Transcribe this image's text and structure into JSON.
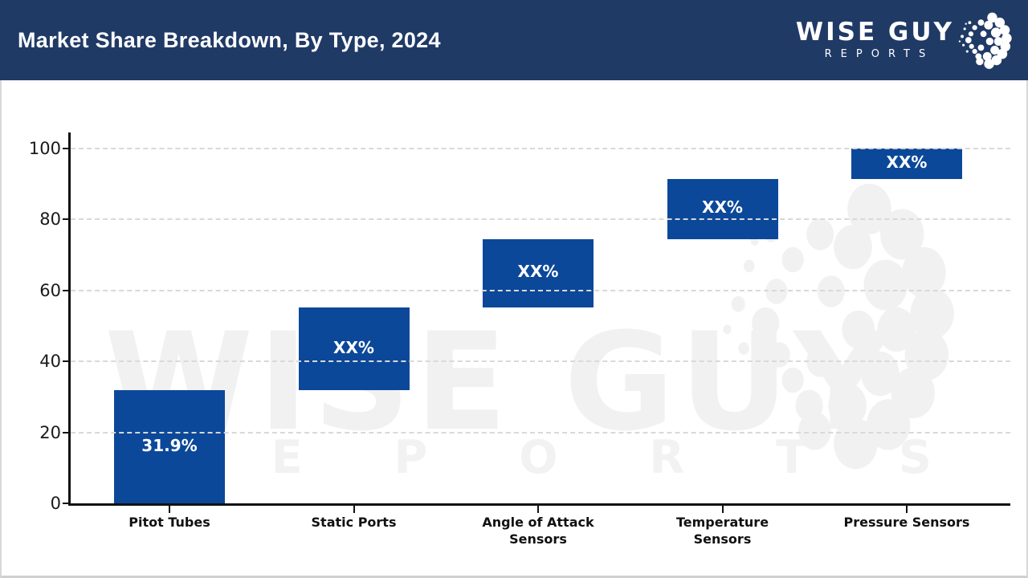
{
  "header": {
    "title": "Market Share Breakdown, By Type, 2024",
    "bg_color": "#203a66",
    "logo": {
      "wordmark": "WISE GUY",
      "subtitle": "REPORTS"
    }
  },
  "watermark": {
    "wordmark": "WISE GUY",
    "subtitle": "R E P O R T S"
  },
  "chart_data": {
    "type": "bar",
    "subtype": "floating-waterfall",
    "title": "Market Share Breakdown, By Type, 2024",
    "categories": [
      "Pitot Tubes",
      "Static Ports",
      "Angle of Attack Sensors",
      "Temperature Sensors",
      "Pressure Sensors"
    ],
    "bars": [
      {
        "category": "Pitot Tubes",
        "start": 0,
        "end": 31.9,
        "label": "31.9%"
      },
      {
        "category": "Static Ports",
        "start": 31.9,
        "end": 55.2,
        "label": "XX%"
      },
      {
        "category": "Angle of Attack Sensors",
        "start": 55.2,
        "end": 74.5,
        "label": "XX%"
      },
      {
        "category": "Temperature Sensors",
        "start": 74.5,
        "end": 91.4,
        "label": "XX%"
      },
      {
        "category": "Pressure Sensors",
        "start": 91.4,
        "end": 100,
        "label": "XX%"
      }
    ],
    "y_ticks": [
      0,
      20,
      40,
      60,
      80,
      100
    ],
    "ylim": [
      0,
      104.5
    ],
    "xlabel": "",
    "ylabel": "",
    "legend": "none",
    "grid": "horizontal-dashed",
    "grid_color": "#d9d9d9",
    "axis_color": "#111111",
    "bar_color": "#0c4899",
    "bar_label_color": "#ffffff"
  }
}
